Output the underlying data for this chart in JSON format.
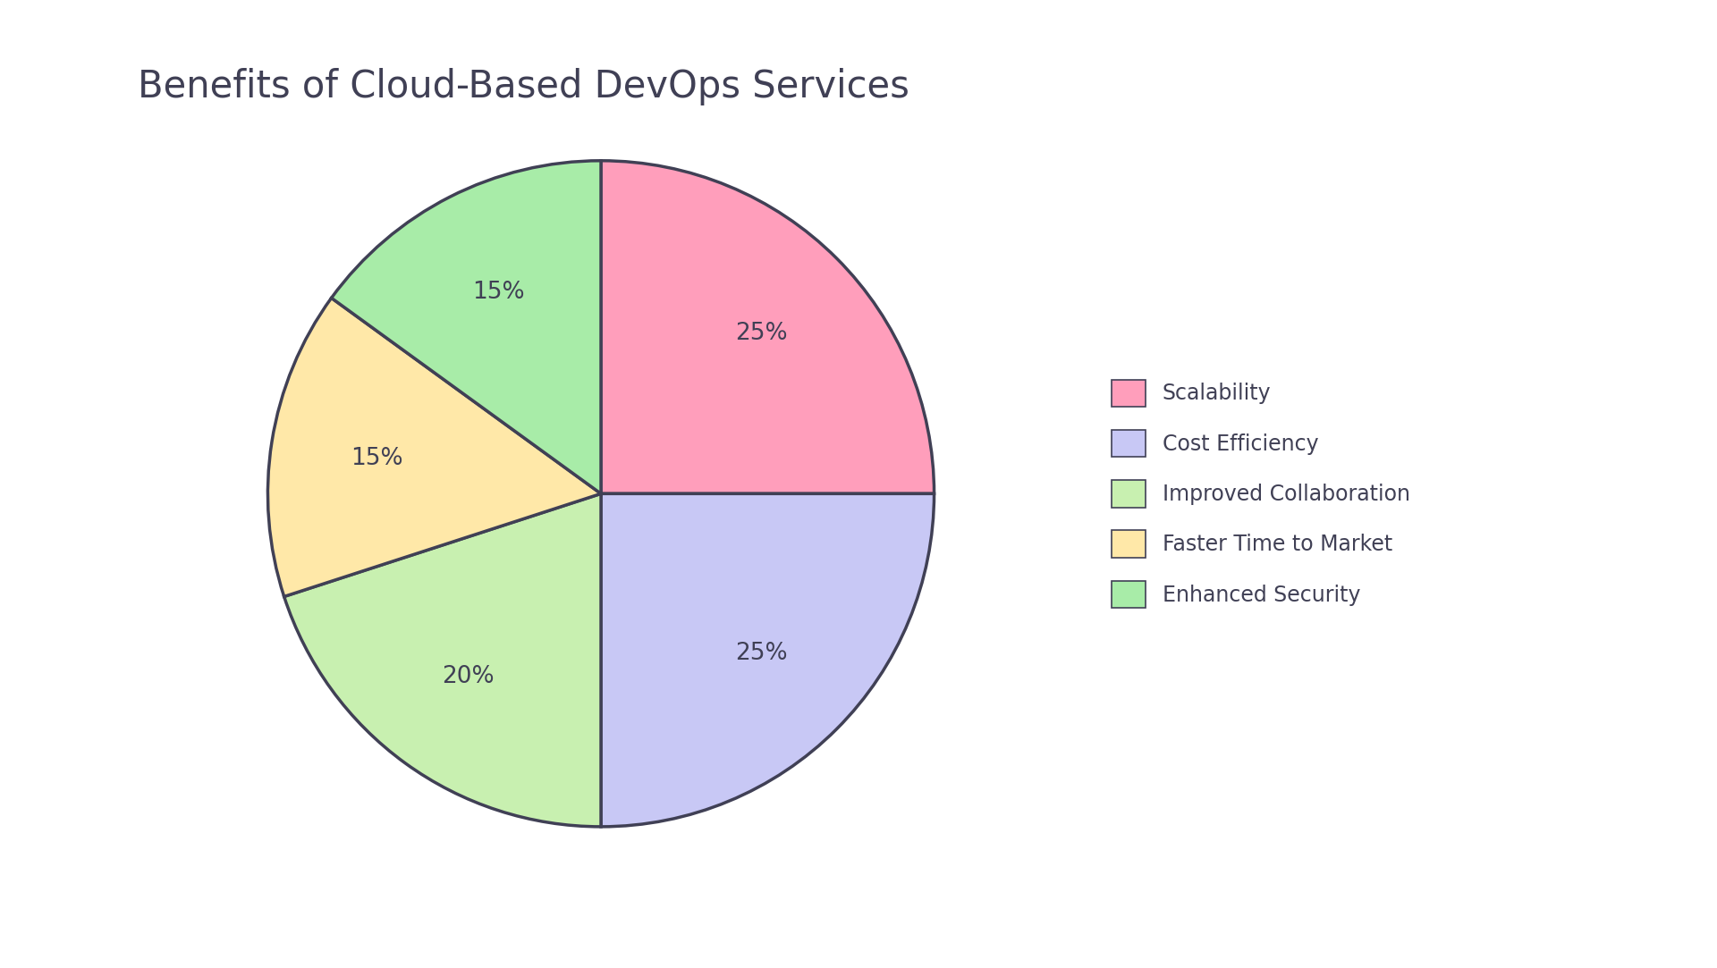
{
  "title": "Benefits of Cloud-Based DevOps Services",
  "labels": [
    "Scalability",
    "Cost Efficiency",
    "Improved Collaboration",
    "Faster Time to Market",
    "Enhanced Security"
  ],
  "sizes": [
    25,
    25,
    20,
    15,
    15
  ],
  "colors": [
    "#FF9EBB",
    "#C8C8F5",
    "#C8F0B0",
    "#FFE8A8",
    "#A8ECA8"
  ],
  "edge_color": "#404055",
  "edge_linewidth": 2.5,
  "autopct_fontsize": 19,
  "title_fontsize": 30,
  "legend_fontsize": 17,
  "background_color": "#ffffff",
  "text_color": "#404055",
  "startangle": 90,
  "pctdistance": 0.68
}
